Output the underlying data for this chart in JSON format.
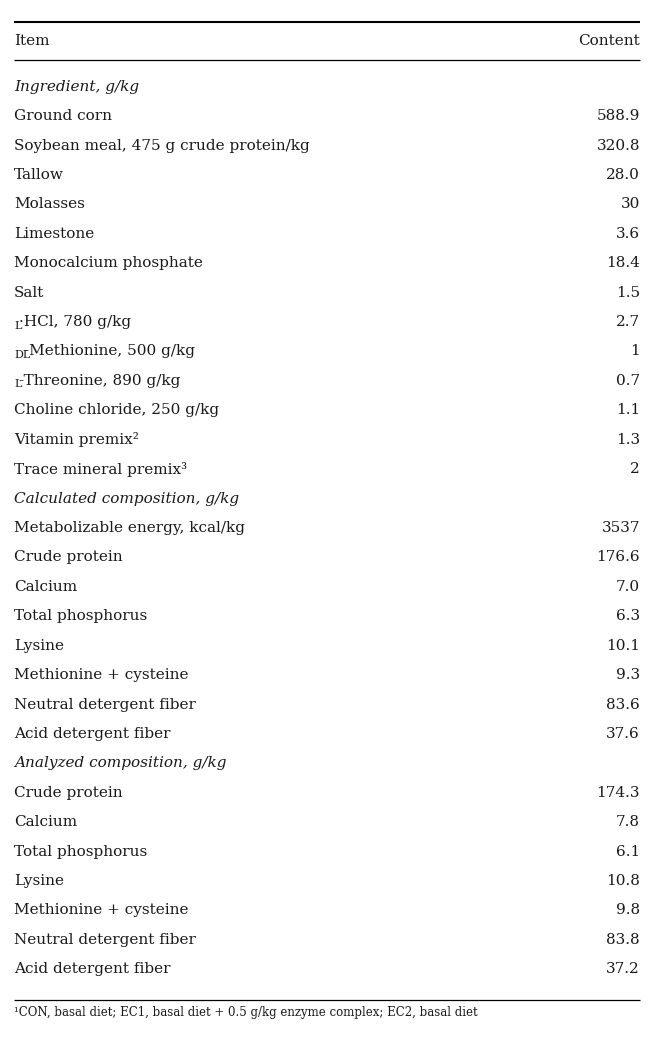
{
  "header": [
    "Item",
    "Content"
  ],
  "rows": [
    {
      "text": "Ingredient, g/kg",
      "value": "",
      "italic": true,
      "special": null
    },
    {
      "text": "Ground corn",
      "value": "588.9",
      "italic": false,
      "special": null
    },
    {
      "text": "Soybean meal, 475 g crude protein/kg",
      "value": "320.8",
      "italic": false,
      "special": null
    },
    {
      "text": "Tallow",
      "value": "28.0",
      "italic": false,
      "special": null
    },
    {
      "text": "Molasses",
      "value": "30",
      "italic": false,
      "special": null
    },
    {
      "text": "Limestone",
      "value": "3.6",
      "italic": false,
      "special": null
    },
    {
      "text": "Monocalcium phosphate",
      "value": "18.4",
      "italic": false,
      "special": null
    },
    {
      "text": "Salt",
      "value": "1.5",
      "italic": false,
      "special": null
    },
    {
      "text": "·HCl, 780 g/kg",
      "value": "2.7",
      "italic": false,
      "special": "L"
    },
    {
      "text": "-Methionine, 500 g/kg",
      "value": "1",
      "italic": false,
      "special": "DL"
    },
    {
      "text": "-Threonine, 890 g/kg",
      "value": "0.7",
      "italic": false,
      "special": "L"
    },
    {
      "text": "Choline chloride, 250 g/kg",
      "value": "1.1",
      "italic": false,
      "special": null
    },
    {
      "text": "Vitamin premix²",
      "value": "1.3",
      "italic": false,
      "special": null
    },
    {
      "text": "Trace mineral premix³",
      "value": "2",
      "italic": false,
      "special": null
    },
    {
      "text": "Calculated composition, g/kg",
      "value": "",
      "italic": true,
      "special": null
    },
    {
      "text": "Metabolizable energy, kcal/kg",
      "value": "3537",
      "italic": false,
      "special": null
    },
    {
      "text": "Crude protein",
      "value": "176.6",
      "italic": false,
      "special": null
    },
    {
      "text": "Calcium",
      "value": "7.0",
      "italic": false,
      "special": null
    },
    {
      "text": "Total phosphorus",
      "value": "6.3",
      "italic": false,
      "special": null
    },
    {
      "text": "Lysine",
      "value": "10.1",
      "italic": false,
      "special": null
    },
    {
      "text": "Methionine + cysteine",
      "value": "9.3",
      "italic": false,
      "special": null
    },
    {
      "text": "Neutral detergent fiber",
      "value": "83.6",
      "italic": false,
      "special": null
    },
    {
      "text": "Acid detergent fiber",
      "value": "37.6",
      "italic": false,
      "special": null
    },
    {
      "text": "Analyzed composition, g/kg",
      "value": "",
      "italic": true,
      "special": null
    },
    {
      "text": "Crude protein",
      "value": "174.3",
      "italic": false,
      "special": null
    },
    {
      "text": "Calcium",
      "value": "7.8",
      "italic": false,
      "special": null
    },
    {
      "text": "Total phosphorus",
      "value": "6.1",
      "italic": false,
      "special": null
    },
    {
      "text": "Lysine",
      "value": "10.8",
      "italic": false,
      "special": null
    },
    {
      "text": "Methionine + cysteine",
      "value": "9.8",
      "italic": false,
      "special": null
    },
    {
      "text": "Neutral detergent fiber",
      "value": "83.8",
      "italic": false,
      "special": null
    },
    {
      "text": "Acid detergent fiber",
      "value": "37.2",
      "italic": false,
      "special": null
    }
  ],
  "footnote": "¹CON, basal diet; EC1, basal diet + 0.5 g/kg enzyme complex; EC2, basal diet",
  "bg_color": "#ffffff",
  "text_color": "#1a1a1a",
  "font_size": 11.0,
  "sub_font_size": 8.0
}
